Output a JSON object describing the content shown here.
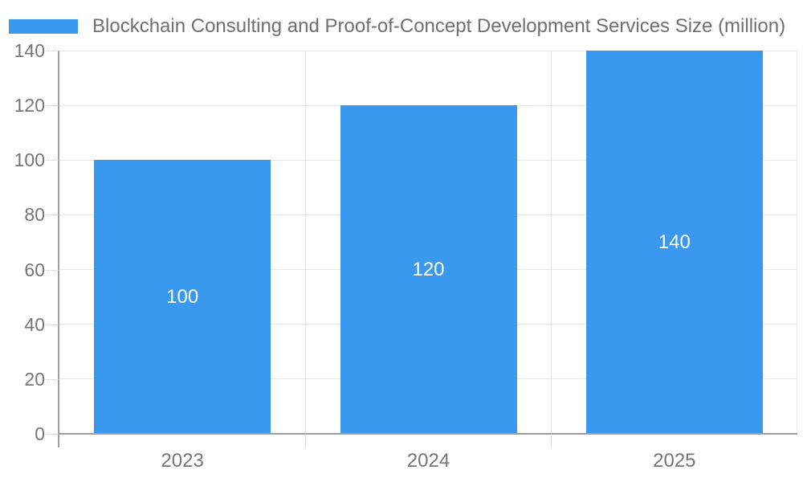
{
  "legend": {
    "label": "Blockchain Consulting and Proof-of-Concept Development Services Size (million)",
    "swatch_color": "#3A99EE"
  },
  "chart_data": {
    "type": "bar",
    "title": "Blockchain Consulting and Proof-of-Concept Development Services Size (million)",
    "categories": [
      "2023",
      "2024",
      "2025"
    ],
    "series": [
      {
        "name": "Blockchain Consulting and Proof-of-Concept Development Services Size (million)",
        "values": [
          100,
          120,
          140
        ]
      }
    ],
    "data_labels": [
      "100",
      "120",
      "140"
    ],
    "yticks": [
      0,
      20,
      40,
      60,
      80,
      100,
      120,
      140
    ],
    "ylim": [
      0,
      140
    ],
    "xlabel": "",
    "ylabel": "",
    "grid": true,
    "legend_position": "top-left"
  },
  "colors": {
    "bar": "#3A99EE",
    "bar_label": "#ffffff",
    "grid": "#e6e6e6",
    "axis_line": "#9e9e9e",
    "tick_label": "#757575",
    "title_text": "#6f6f6f",
    "background": "#ffffff"
  }
}
